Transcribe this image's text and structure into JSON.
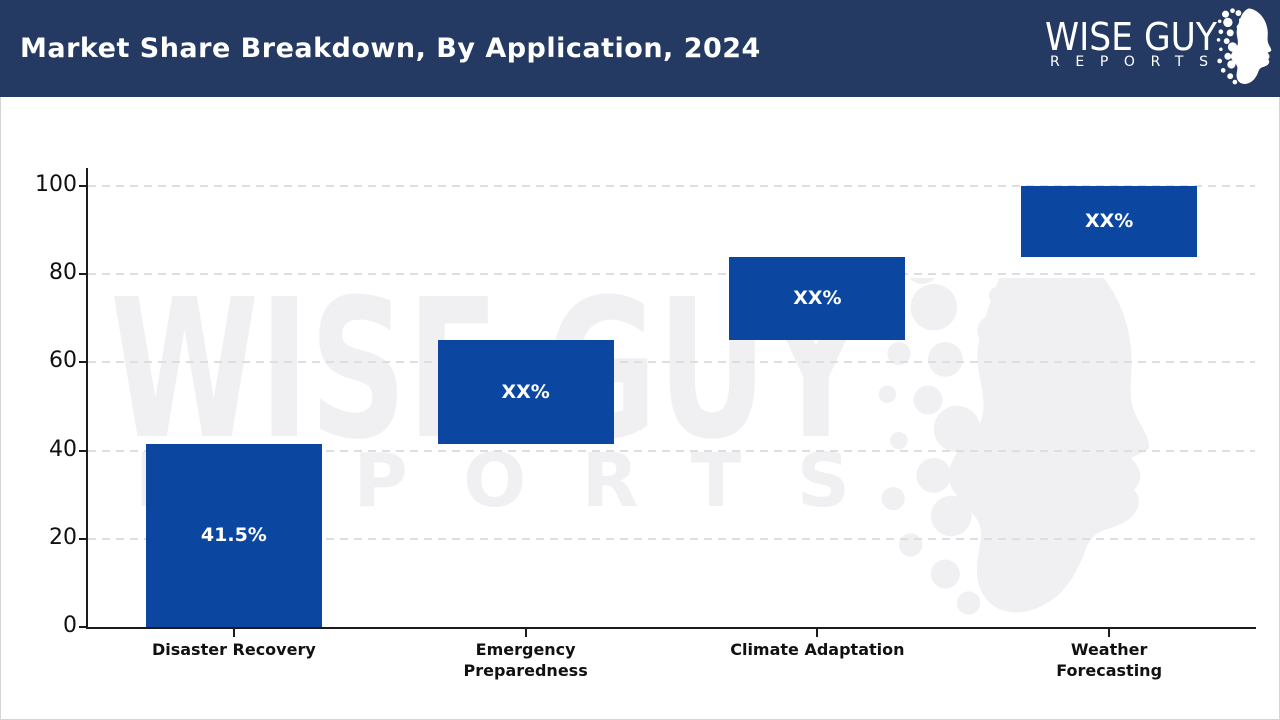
{
  "page": {
    "border_color": "#d4d4d4",
    "background": "#ffffff"
  },
  "header": {
    "title": "Market Share Breakdown, By Application, 2024",
    "background": "#243a63",
    "text_color": "#ffffff",
    "logo": {
      "line1": "WISE GUY",
      "line2": "REPORTS"
    }
  },
  "watermark": {
    "line1": "WISE GUY",
    "line2": "REPORTS",
    "color": "#f0f0f3"
  },
  "chart_data": {
    "type": "bar",
    "subtype": "waterfall",
    "title": "Market Share Breakdown, By Application, 2024",
    "xlabel": "",
    "ylabel": "",
    "categories": [
      "Disaster Recovery",
      "Emergency\nPreparedness",
      "Climate Adaptation",
      "Weather\nForecasting"
    ],
    "series": [
      {
        "name": "Market Share",
        "segments": [
          {
            "category": "Disaster Recovery",
            "from": 0,
            "to": 41.5,
            "label": "41.5%"
          },
          {
            "category": "Emergency Preparedness",
            "from": 41.5,
            "to": 65,
            "label": "XX%"
          },
          {
            "category": "Climate Adaptation",
            "from": 65,
            "to": 84,
            "label": "XX%"
          },
          {
            "category": "Weather Forecasting",
            "from": 84,
            "to": 100,
            "label": "XX%"
          }
        ]
      }
    ],
    "ylim": [
      0,
      100
    ],
    "yticks": [
      0,
      20,
      40,
      60,
      80,
      100
    ],
    "grid": "horizontal-dashed",
    "grid_color": "#dedede",
    "legend": "none",
    "bar_color": "#0b47a1",
    "bar_label_color": "#ffffff",
    "axis_color": "#1c1c1c"
  }
}
